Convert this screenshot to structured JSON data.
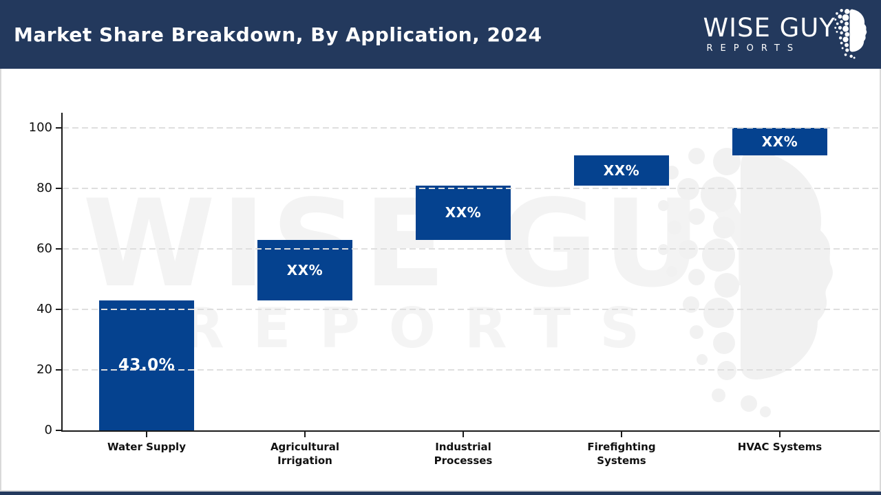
{
  "header": {
    "title": "Market Share Breakdown, By Application, 2024",
    "background": "#23395d",
    "logo": {
      "line1": "WISE GUY",
      "line2": "REPORTS"
    }
  },
  "watermark": {
    "line1": "WISE GUY",
    "line2": "REPORTS"
  },
  "chart_data": {
    "type": "bar",
    "variant": "waterfall",
    "title": "Market Share Breakdown, By Application, 2024",
    "xlabel": "",
    "ylabel": "",
    "ylim": [
      0,
      105
    ],
    "yticks": [
      0,
      20,
      40,
      60,
      80,
      100
    ],
    "grid": "dashed horizontal",
    "bar_color": "#05428f",
    "bar_label_color": "#ffffff",
    "axis_color": "#1a1a1a",
    "categories": [
      "Water Supply",
      "Agricultural Irrigation",
      "Industrial Processes",
      "Firefighting Systems",
      "HVAC Systems"
    ],
    "segments": [
      {
        "category": "Water Supply",
        "category_lines": [
          "Water Supply"
        ],
        "label": "43.0%",
        "start": 0,
        "end": 43,
        "span": 43
      },
      {
        "category": "Agricultural Irrigation",
        "category_lines": [
          "Agricultural",
          "Irrigation"
        ],
        "label": "XX%",
        "start": 43,
        "end": 63,
        "span": 20
      },
      {
        "category": "Industrial Processes",
        "category_lines": [
          "Industrial",
          "Processes"
        ],
        "label": "XX%",
        "start": 63,
        "end": 81,
        "span": 18
      },
      {
        "category": "Firefighting Systems",
        "category_lines": [
          "Firefighting",
          "Systems"
        ],
        "label": "XX%",
        "start": 81,
        "end": 91,
        "span": 10
      },
      {
        "category": "HVAC Systems",
        "category_lines": [
          "HVAC Systems"
        ],
        "label": "XX%",
        "start": 91,
        "end": 100,
        "span": 9
      }
    ]
  }
}
